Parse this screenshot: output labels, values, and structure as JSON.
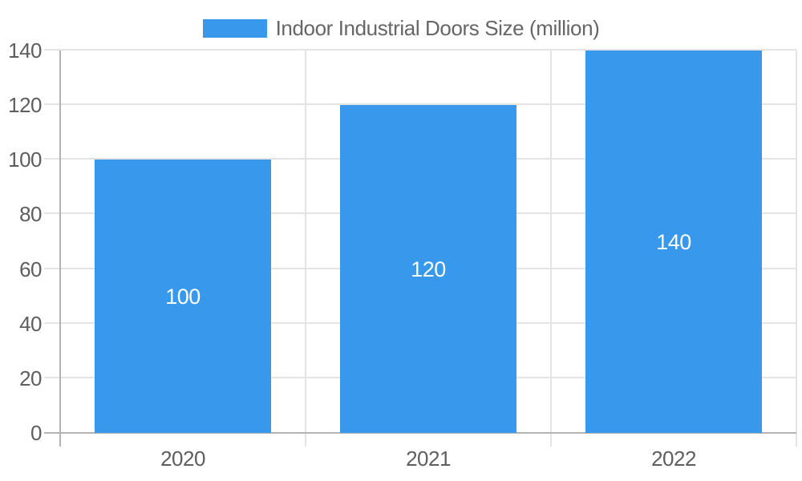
{
  "chart_data": {
    "type": "bar",
    "title": "Indoor Industrial Doors Size (million)",
    "categories": [
      "2020",
      "2021",
      "2022"
    ],
    "series": [
      {
        "name": "Indoor Industrial Doors Size (million)",
        "values": [
          100,
          120,
          140
        ]
      }
    ],
    "value_labels": [
      "100",
      "120",
      "140"
    ],
    "xlabel": "",
    "ylabel": "",
    "ylim": [
      0,
      140
    ],
    "ytick_step": 20,
    "ytick_labels": [
      "0",
      "20",
      "40",
      "60",
      "80",
      "100",
      "120",
      "140"
    ],
    "grid": true,
    "legend_position": "top-center",
    "colors": {
      "bar": "#3899ec",
      "grid": "#e4e4e4",
      "axis": "#b3b3b3",
      "tick_label": "#5e5e5e",
      "legend_text": "#666666",
      "value_label": "#ffffff",
      "background": "#ffffff"
    }
  }
}
